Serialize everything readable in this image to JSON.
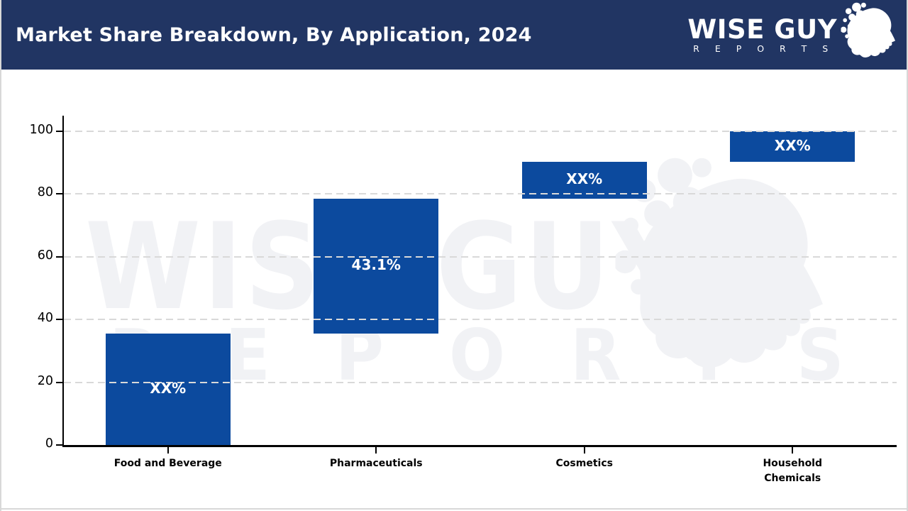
{
  "header": {
    "title": "Market Share Breakdown, By Application, 2024",
    "logo": {
      "line1": "WISE GUY",
      "line2": "R E P O R T S"
    }
  },
  "watermark": {
    "line1": "WISE GUY",
    "line2": "R E P O R T S"
  },
  "colors": {
    "header_bg": "#213563",
    "bar": "#0c4a9e",
    "grid": "#d9d9d9",
    "axis": "#000000",
    "bar_label": "#ffffff",
    "watermark": "#f1f2f5"
  },
  "chart_data": {
    "type": "bar",
    "subtype": "waterfall",
    "title": "Market Share Breakdown, By Application, 2024",
    "xlabel": "",
    "ylabel": "",
    "categories": [
      "Food and Beverage",
      "Pharmaceuticals",
      "Cosmetics",
      "Household Chemicals"
    ],
    "category_lines": [
      [
        "Food and Beverage"
      ],
      [
        "Pharmaceuticals"
      ],
      [
        "Cosmetics"
      ],
      [
        "Household",
        "Chemicals"
      ]
    ],
    "segments": [
      {
        "category": "Food and Beverage",
        "start": 0,
        "end": 35.5,
        "value": 35.5,
        "label": "XX%"
      },
      {
        "category": "Pharmaceuticals",
        "start": 35.5,
        "end": 78.6,
        "value": 43.1,
        "label": "43.1%"
      },
      {
        "category": "Cosmetics",
        "start": 78.6,
        "end": 90.2,
        "value": 11.6,
        "label": "XX%"
      },
      {
        "category": "Household Chemicals",
        "start": 90.2,
        "end": 100,
        "value": 9.8,
        "label": "XX%"
      }
    ],
    "yticks": [
      0,
      20,
      40,
      60,
      80,
      100
    ],
    "ylim": [
      0,
      105
    ],
    "grid": "horizontal-dashed",
    "legend": null
  }
}
